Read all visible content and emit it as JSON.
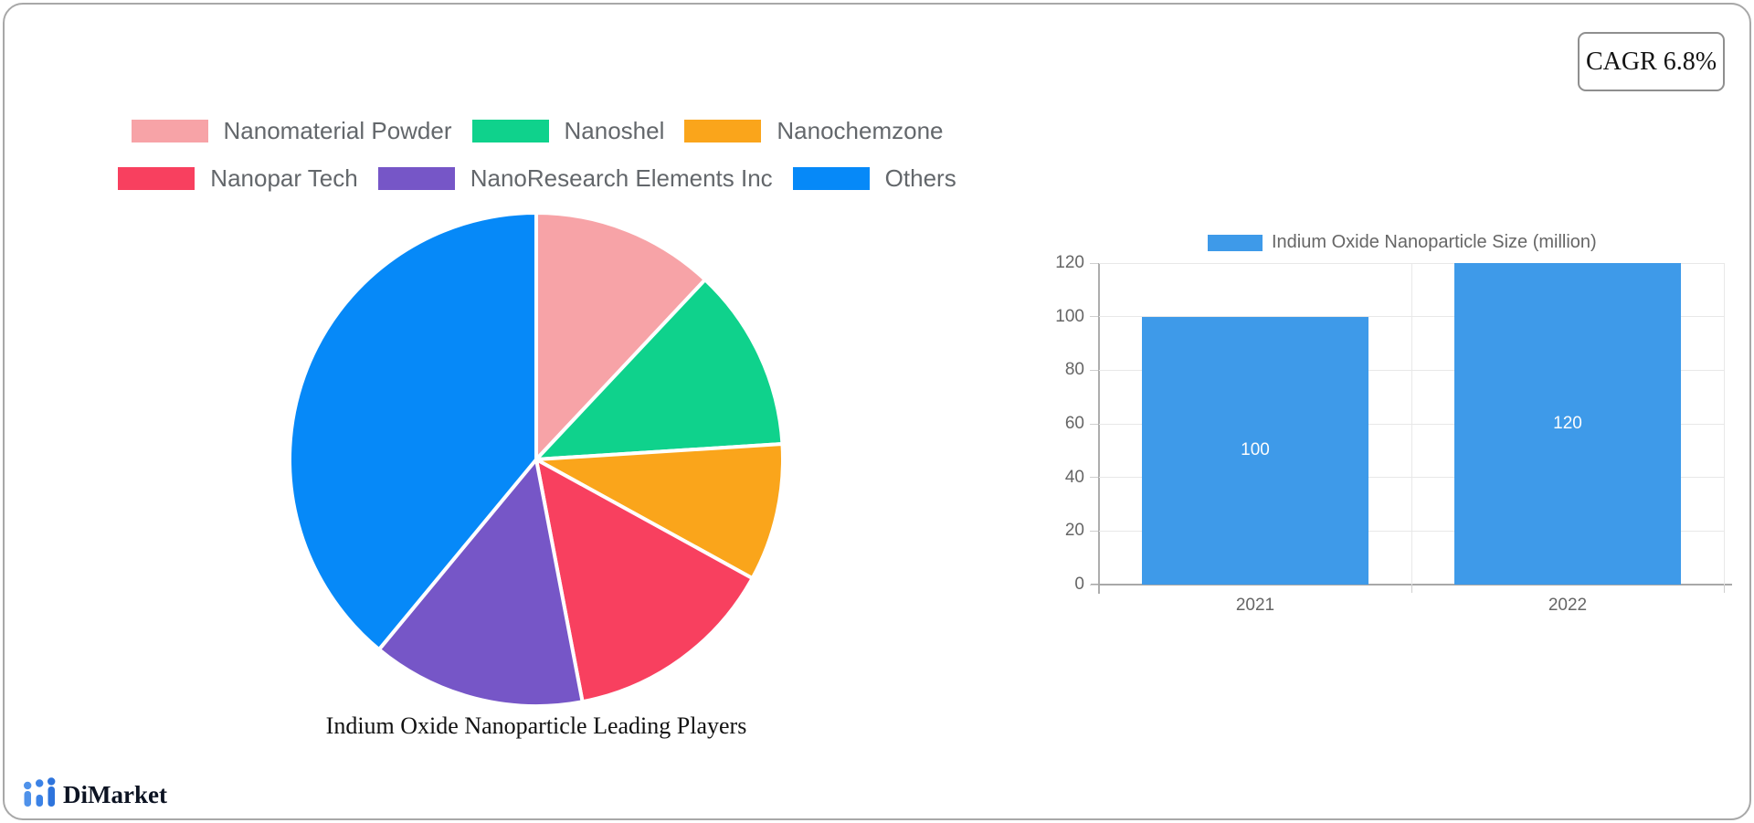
{
  "page": {
    "cagr_badge": "CAGR 6.8%",
    "brand": "DiMarket"
  },
  "colors": {
    "pie_slices": [
      "#F7A3A7",
      "#0FD28C",
      "#FAA51B",
      "#F8405F",
      "#7656C7",
      "#0689F8"
    ],
    "bar_fill": "#3E9AE9",
    "legend_text": "#63676b",
    "axis_text": "#666666",
    "gridline": "#e8e8e8",
    "axis_line": "#a8a8a8",
    "logo_blue": "#3F87E6"
  },
  "chart_data": [
    {
      "type": "pie",
      "title": "Indium Oxide Nanoparticle Leading Players",
      "labels": [
        "Nanomaterial Powder",
        "Nanoshel",
        "Nanochemzone",
        "Nanopar Tech",
        "NanoResearch Elements Inc",
        "Others"
      ],
      "values": [
        12,
        12,
        9,
        14,
        14,
        39
      ],
      "colors": [
        "#F7A3A7",
        "#0FD28C",
        "#FAA51B",
        "#F8405F",
        "#7656C7",
        "#0689F8"
      ],
      "legend_position": "top",
      "legend_rows": [
        3,
        3
      ],
      "start_angle_deg": 0,
      "slice_gap_stroke": "#ffffff"
    },
    {
      "type": "bar",
      "categories": [
        "2021",
        "2022"
      ],
      "series": [
        {
          "name": "Indium Oxide Nanoparticle Size (million)",
          "values": [
            100,
            120
          ]
        }
      ],
      "value_labels": [
        "100",
        "120"
      ],
      "ylim": [
        0,
        120
      ],
      "yticks": [
        0,
        20,
        40,
        60,
        80,
        100,
        120
      ],
      "grid": true,
      "legend_position": "top",
      "bar_color": "#3E9AE9"
    }
  ]
}
